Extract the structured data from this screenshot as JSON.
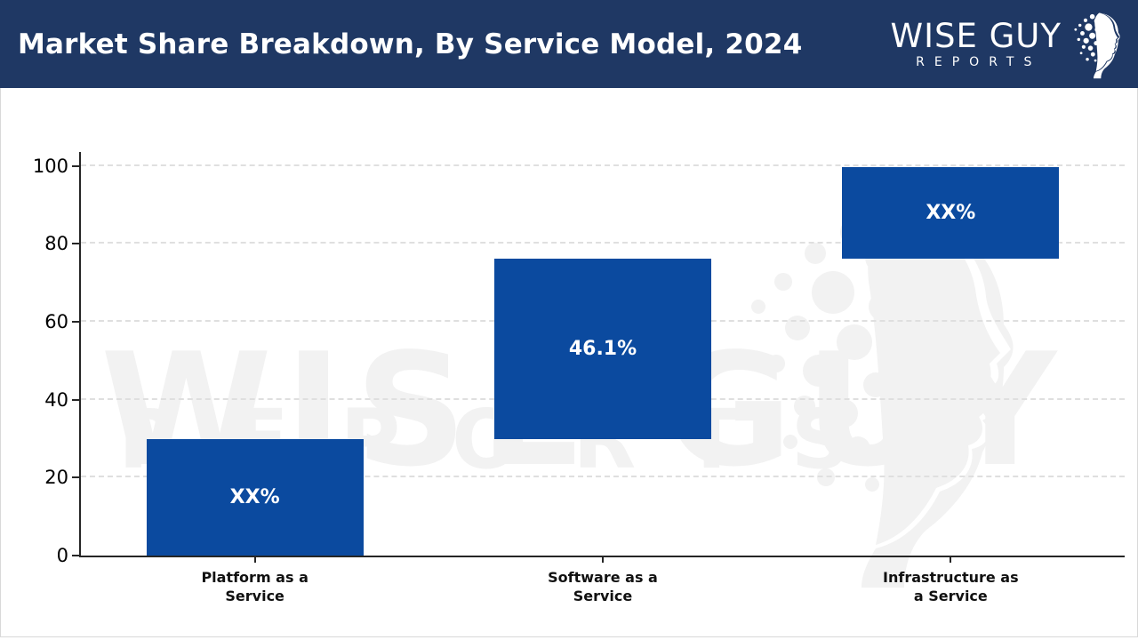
{
  "header": {
    "title": "Market Share Breakdown, By Service Model, 2024",
    "logo": {
      "line1": "WISE GUY",
      "line2": "REPORTS"
    }
  },
  "watermark": {
    "line1": "WISE GUY",
    "line2": "REPORTS"
  },
  "colors": {
    "header_bg": "#1f3864",
    "bar": "#0b4a9f",
    "bar_label": "#ffffff",
    "axis": "#262626",
    "grid": "#dfdfdf",
    "watermark": "#f2f2f2"
  },
  "chart_data": {
    "type": "bar",
    "variant": "floating-waterfall-segments",
    "title": "Market Share Breakdown, By Service Model, 2024",
    "categories": [
      "Platform as a Service",
      "Software as a Service",
      "Infrastructure as a Service"
    ],
    "category_label_lines": [
      [
        "Platform as a",
        "Service"
      ],
      [
        "Software as a",
        "Service"
      ],
      [
        "Infrastructure as",
        "a Service"
      ]
    ],
    "bars": [
      {
        "start": 0,
        "end": 30,
        "label": "XX%"
      },
      {
        "start": 30,
        "end": 76.1,
        "label": "46.1%"
      },
      {
        "start": 76.1,
        "end": 99.7,
        "label": "XX%"
      }
    ],
    "xlabel": "",
    "ylabel": "",
    "yticks": [
      0,
      20,
      40,
      60,
      80,
      100
    ],
    "ylim": [
      0,
      100
    ],
    "grid": "horizontal-dashed",
    "legend": "none"
  }
}
